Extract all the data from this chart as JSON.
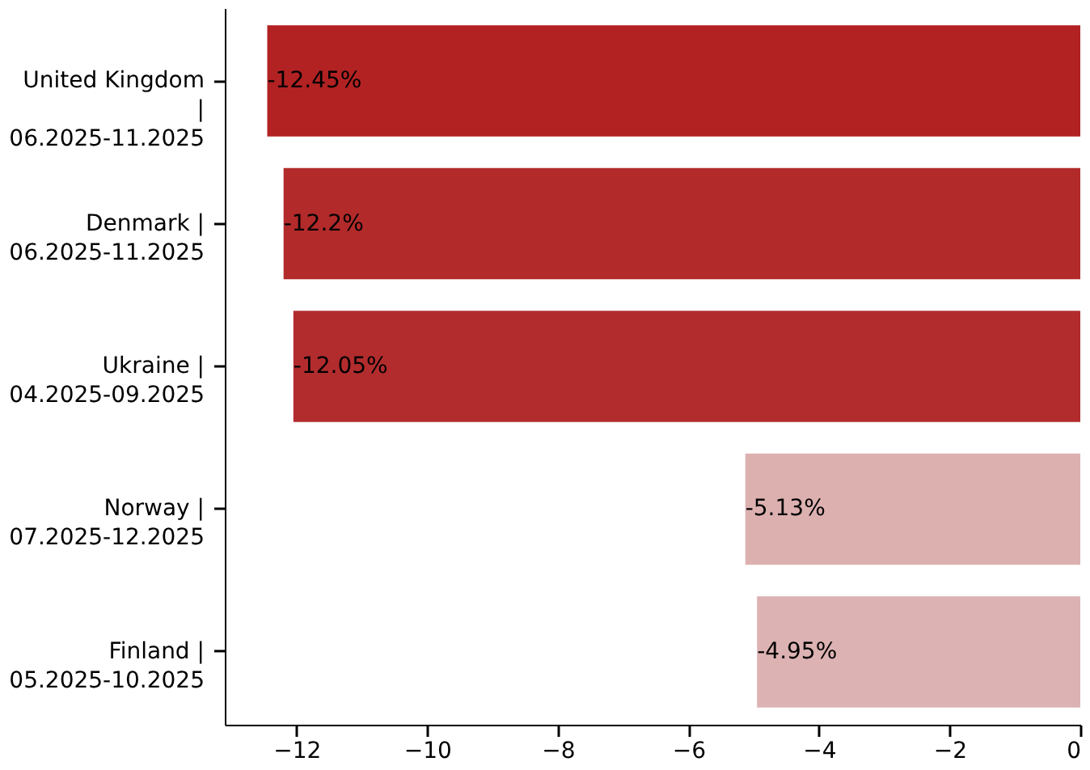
{
  "chart_data": {
    "type": "bar",
    "orientation": "horizontal",
    "categories": [
      "United Kingdom\n|\n06.2025-11.2025",
      "Denmark |\n06.2025-11.2025",
      "Ukraine |\n04.2025-09.2025",
      "Norway |\n07.2025-12.2025",
      "Finland |\n05.2025-10.2025"
    ],
    "values": [
      -12.45,
      -12.2,
      -12.05,
      -5.13,
      -4.95
    ],
    "value_labels": [
      "-12.45%",
      "-12.2%",
      "-12.05%",
      "-5.13%",
      "-4.95%"
    ],
    "colors": [
      "#b22222",
      "#b22a2a",
      "#b22c2e",
      "#ddb0b0",
      "#ddb2b2"
    ],
    "xlim": [
      -13.1,
      0
    ],
    "xticks": [
      -12,
      -10,
      -8,
      -6,
      -4,
      -2,
      0
    ],
    "grid": false
  }
}
